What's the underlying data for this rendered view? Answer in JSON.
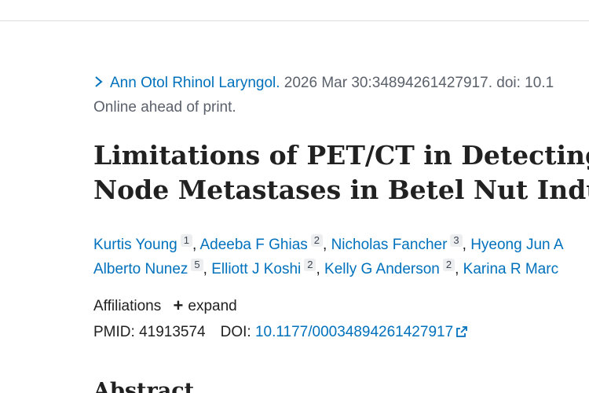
{
  "citation": {
    "journal": "Ann Otol Rhinol Laryngol.",
    "details": "2026 Mar 30:34894261427917. doi: 10.1",
    "status": "Online ahead of print."
  },
  "article": {
    "title_line1": "Limitations of PET/CT in Detecting C",
    "title_line2": "Node Metastases in Betel Nut Induce"
  },
  "authors": [
    {
      "name": "Kurtis Young",
      "aff": "1",
      "sep": ", "
    },
    {
      "name": "Adeeba F Ghias",
      "aff": "2",
      "sep": ", "
    },
    {
      "name": "Nicholas Fancher",
      "aff": "3",
      "sep": ", "
    },
    {
      "name": "Hyeong Jun A",
      "aff": "",
      "sep": ""
    },
    {
      "name": "Alberto Nunez",
      "aff": "5",
      "sep": ", "
    },
    {
      "name": "Elliott J Koshi",
      "aff": "2",
      "sep": ", "
    },
    {
      "name": "Kelly G Anderson",
      "aff": "2",
      "sep": ", "
    },
    {
      "name": "Karina R Marc",
      "aff": "",
      "sep": ""
    }
  ],
  "affiliations": {
    "label": "Affiliations",
    "expand_label": "expand"
  },
  "ids": {
    "pmid_label": "PMID:",
    "pmid": "41913574",
    "doi_label": "DOI:",
    "doi": "10.1177/00034894261427917"
  },
  "abstract": {
    "heading": "Abstract"
  },
  "colors": {
    "link": "#0071bc",
    "muted": "#5b616b",
    "text": "#212121"
  },
  "icons": [
    "chevron-right-icon",
    "plus-icon",
    "external-link-icon"
  ]
}
